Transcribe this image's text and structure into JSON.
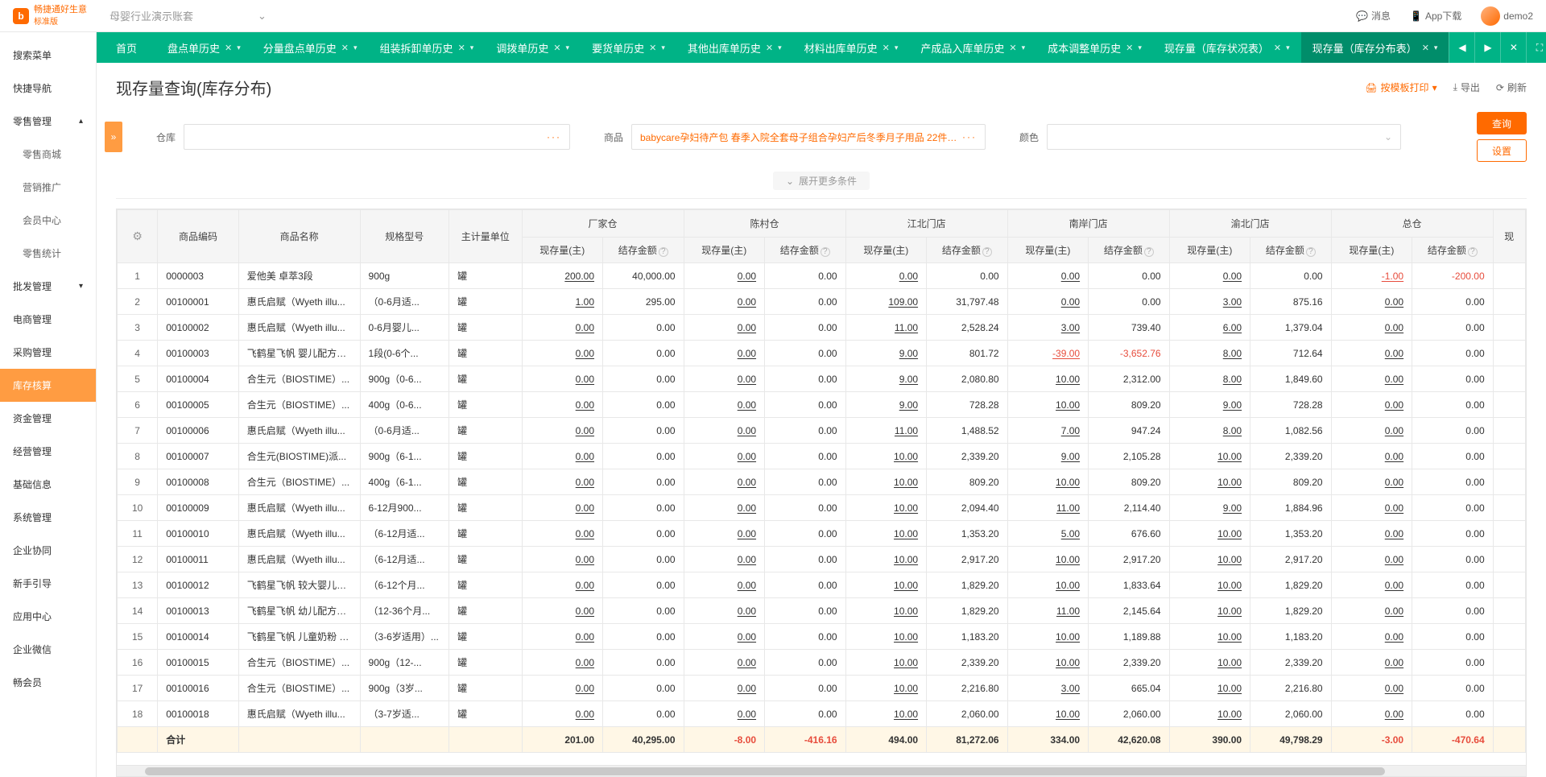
{
  "topbar": {
    "brand_line1": "畅捷通好生意",
    "brand_line2": "标准版",
    "account": "母婴行业演示账套",
    "msg": "消息",
    "download": "App下载",
    "user": "demo2"
  },
  "sidebar": {
    "items": [
      {
        "label": "搜索菜单",
        "type": "item"
      },
      {
        "label": "快捷导航",
        "type": "item"
      },
      {
        "label": "零售管理",
        "type": "group",
        "open": true
      },
      {
        "label": "零售商城",
        "type": "child"
      },
      {
        "label": "营销推广",
        "type": "child"
      },
      {
        "label": "会员中心",
        "type": "child"
      },
      {
        "label": "零售统计",
        "type": "child"
      },
      {
        "label": "批发管理",
        "type": "group",
        "open": false
      },
      {
        "label": "电商管理",
        "type": "item"
      },
      {
        "label": "采购管理",
        "type": "item"
      },
      {
        "label": "库存核算",
        "type": "item",
        "active": true
      },
      {
        "label": "资金管理",
        "type": "item"
      },
      {
        "label": "经营管理",
        "type": "item"
      },
      {
        "label": "基础信息",
        "type": "item"
      },
      {
        "label": "系统管理",
        "type": "item"
      },
      {
        "label": "企业协同",
        "type": "item"
      },
      {
        "label": "新手引导",
        "type": "item"
      },
      {
        "label": "应用中心",
        "type": "item"
      },
      {
        "label": "企业微信",
        "type": "item"
      },
      {
        "label": "畅会员",
        "type": "item"
      }
    ]
  },
  "tabs": {
    "items": [
      {
        "label": "首页",
        "home": true
      },
      {
        "label": "盘点单历史"
      },
      {
        "label": "分量盘点单历史"
      },
      {
        "label": "组装拆卸单历史"
      },
      {
        "label": "调拨单历史"
      },
      {
        "label": "要货单历史"
      },
      {
        "label": "其他出库单历史"
      },
      {
        "label": "材料出库单历史"
      },
      {
        "label": "产成品入库单历史"
      },
      {
        "label": "成本调整单历史"
      },
      {
        "label": "现存量（库存状况表）"
      },
      {
        "label": "现存量（库存分布表）",
        "active": true
      }
    ]
  },
  "page": {
    "title": "现存量查询(库存分布)",
    "print": "按模板打印",
    "export": "导出",
    "refresh": "刷新"
  },
  "filters": {
    "warehouse_label": "仓库",
    "product_label": "商品",
    "product_value": "babycare孕妇待产包 春季入院全套母子组合孕妇产后冬季月子用品 22件套 …",
    "color_label": "颜色",
    "query_btn": "查询",
    "setting_btn": "设置",
    "expand": "展开更多条件"
  },
  "table": {
    "group_headers": [
      "厂家仓",
      "陈村仓",
      "江北门店",
      "南岸门店",
      "渝北门店",
      "总仓"
    ],
    "sub_qty": "现存量(主)",
    "sub_amt": "结存金额",
    "col_code": "商品编码",
    "col_name": "商品名称",
    "col_spec": "规格型号",
    "col_unit": "主计量单位",
    "extra_qty": "现",
    "rows": [
      {
        "idx": 1,
        "code": "0000003",
        "name": "爱他美 卓萃3段",
        "spec": "900g",
        "unit": "罐",
        "cells": [
          [
            "200.00",
            "40,000.00"
          ],
          [
            "0.00",
            "0.00"
          ],
          [
            "0.00",
            "0.00"
          ],
          [
            "0.00",
            "0.00"
          ],
          [
            "0.00",
            "0.00"
          ],
          [
            "-1.00",
            "-200.00"
          ]
        ]
      },
      {
        "idx": 2,
        "code": "00100001",
        "name": "惠氏启赋（Wyeth illu...",
        "spec": "（0-6月适...",
        "unit": "罐",
        "cells": [
          [
            "1.00",
            "295.00"
          ],
          [
            "0.00",
            "0.00"
          ],
          [
            "109.00",
            "31,797.48"
          ],
          [
            "0.00",
            "0.00"
          ],
          [
            "3.00",
            "875.16"
          ],
          [
            "0.00",
            "0.00"
          ]
        ]
      },
      {
        "idx": 3,
        "code": "00100002",
        "name": "惠氏启赋（Wyeth illu...",
        "spec": "0-6月婴儿...",
        "unit": "罐",
        "cells": [
          [
            "0.00",
            "0.00"
          ],
          [
            "0.00",
            "0.00"
          ],
          [
            "11.00",
            "2,528.24"
          ],
          [
            "3.00",
            "739.40"
          ],
          [
            "6.00",
            "1,379.04"
          ],
          [
            "0.00",
            "0.00"
          ]
        ]
      },
      {
        "idx": 4,
        "code": "00100003",
        "name": "飞鹤星飞帆 婴儿配方奶...",
        "spec": "1段(0-6个...",
        "unit": "罐",
        "cells": [
          [
            "0.00",
            "0.00"
          ],
          [
            "0.00",
            "0.00"
          ],
          [
            "9.00",
            "801.72"
          ],
          [
            "-39.00",
            "-3,652.76"
          ],
          [
            "8.00",
            "712.64"
          ],
          [
            "0.00",
            "0.00"
          ]
        ]
      },
      {
        "idx": 5,
        "code": "00100004",
        "name": "合生元（BIOSTIME）...",
        "spec": "900g（0-6...",
        "unit": "罐",
        "cells": [
          [
            "0.00",
            "0.00"
          ],
          [
            "0.00",
            "0.00"
          ],
          [
            "9.00",
            "2,080.80"
          ],
          [
            "10.00",
            "2,312.00"
          ],
          [
            "8.00",
            "1,849.60"
          ],
          [
            "0.00",
            "0.00"
          ]
        ]
      },
      {
        "idx": 6,
        "code": "00100005",
        "name": "合生元（BIOSTIME）...",
        "spec": "400g（0-6...",
        "unit": "罐",
        "cells": [
          [
            "0.00",
            "0.00"
          ],
          [
            "0.00",
            "0.00"
          ],
          [
            "9.00",
            "728.28"
          ],
          [
            "10.00",
            "809.20"
          ],
          [
            "9.00",
            "728.28"
          ],
          [
            "0.00",
            "0.00"
          ]
        ]
      },
      {
        "idx": 7,
        "code": "00100006",
        "name": "惠氏启赋（Wyeth illu...",
        "spec": "（0-6月适...",
        "unit": "罐",
        "cells": [
          [
            "0.00",
            "0.00"
          ],
          [
            "0.00",
            "0.00"
          ],
          [
            "11.00",
            "1,488.52"
          ],
          [
            "7.00",
            "947.24"
          ],
          [
            "8.00",
            "1,082.56"
          ],
          [
            "0.00",
            "0.00"
          ]
        ]
      },
      {
        "idx": 8,
        "code": "00100007",
        "name": "合生元(BIOSTIME)派...",
        "spec": "900g（6-1...",
        "unit": "罐",
        "cells": [
          [
            "0.00",
            "0.00"
          ],
          [
            "0.00",
            "0.00"
          ],
          [
            "10.00",
            "2,339.20"
          ],
          [
            "9.00",
            "2,105.28"
          ],
          [
            "10.00",
            "2,339.20"
          ],
          [
            "0.00",
            "0.00"
          ]
        ]
      },
      {
        "idx": 9,
        "code": "00100008",
        "name": "合生元（BIOSTIME）...",
        "spec": "400g（6-1...",
        "unit": "罐",
        "cells": [
          [
            "0.00",
            "0.00"
          ],
          [
            "0.00",
            "0.00"
          ],
          [
            "10.00",
            "809.20"
          ],
          [
            "10.00",
            "809.20"
          ],
          [
            "10.00",
            "809.20"
          ],
          [
            "0.00",
            "0.00"
          ]
        ]
      },
      {
        "idx": 10,
        "code": "00100009",
        "name": "惠氏启赋（Wyeth illu...",
        "spec": "6-12月900...",
        "unit": "罐",
        "cells": [
          [
            "0.00",
            "0.00"
          ],
          [
            "0.00",
            "0.00"
          ],
          [
            "10.00",
            "2,094.40"
          ],
          [
            "11.00",
            "2,114.40"
          ],
          [
            "9.00",
            "1,884.96"
          ],
          [
            "0.00",
            "0.00"
          ]
        ]
      },
      {
        "idx": 11,
        "code": "00100010",
        "name": "惠氏启赋（Wyeth illu...",
        "spec": "（6-12月适...",
        "unit": "罐",
        "cells": [
          [
            "0.00",
            "0.00"
          ],
          [
            "0.00",
            "0.00"
          ],
          [
            "10.00",
            "1,353.20"
          ],
          [
            "5.00",
            "676.60"
          ],
          [
            "10.00",
            "1,353.20"
          ],
          [
            "0.00",
            "0.00"
          ]
        ]
      },
      {
        "idx": 12,
        "code": "00100011",
        "name": "惠氏启赋（Wyeth illu...",
        "spec": "（6-12月适...",
        "unit": "罐",
        "cells": [
          [
            "0.00",
            "0.00"
          ],
          [
            "0.00",
            "0.00"
          ],
          [
            "10.00",
            "2,917.20"
          ],
          [
            "10.00",
            "2,917.20"
          ],
          [
            "10.00",
            "2,917.20"
          ],
          [
            "0.00",
            "0.00"
          ]
        ]
      },
      {
        "idx": 13,
        "code": "00100012",
        "name": "飞鹤星飞帆 较大婴儿配...",
        "spec": "（6-12个月...",
        "unit": "罐",
        "cells": [
          [
            "0.00",
            "0.00"
          ],
          [
            "0.00",
            "0.00"
          ],
          [
            "10.00",
            "1,829.20"
          ],
          [
            "10.00",
            "1,833.64"
          ],
          [
            "10.00",
            "1,829.20"
          ],
          [
            "0.00",
            "0.00"
          ]
        ]
      },
      {
        "idx": 14,
        "code": "00100013",
        "name": "飞鹤星飞帆 幼儿配方奶...",
        "spec": "（12-36个月...",
        "unit": "罐",
        "cells": [
          [
            "0.00",
            "0.00"
          ],
          [
            "0.00",
            "0.00"
          ],
          [
            "10.00",
            "1,829.20"
          ],
          [
            "11.00",
            "2,145.64"
          ],
          [
            "10.00",
            "1,829.20"
          ],
          [
            "0.00",
            "0.00"
          ]
        ]
      },
      {
        "idx": 15,
        "code": "00100014",
        "name": "飞鹤星飞帆 儿童奶粉 4...",
        "spec": "（3-6岁适用）...",
        "unit": "罐",
        "cells": [
          [
            "0.00",
            "0.00"
          ],
          [
            "0.00",
            "0.00"
          ],
          [
            "10.00",
            "1,183.20"
          ],
          [
            "10.00",
            "1,189.88"
          ],
          [
            "10.00",
            "1,183.20"
          ],
          [
            "0.00",
            "0.00"
          ]
        ]
      },
      {
        "idx": 16,
        "code": "00100015",
        "name": "合生元（BIOSTIME）...",
        "spec": "900g（12-...",
        "unit": "罐",
        "cells": [
          [
            "0.00",
            "0.00"
          ],
          [
            "0.00",
            "0.00"
          ],
          [
            "10.00",
            "2,339.20"
          ],
          [
            "10.00",
            "2,339.20"
          ],
          [
            "10.00",
            "2,339.20"
          ],
          [
            "0.00",
            "0.00"
          ]
        ]
      },
      {
        "idx": 17,
        "code": "00100016",
        "name": "合生元（BIOSTIME）...",
        "spec": "900g（3岁...",
        "unit": "罐",
        "cells": [
          [
            "0.00",
            "0.00"
          ],
          [
            "0.00",
            "0.00"
          ],
          [
            "10.00",
            "2,216.80"
          ],
          [
            "3.00",
            "665.04"
          ],
          [
            "10.00",
            "2,216.80"
          ],
          [
            "0.00",
            "0.00"
          ]
        ]
      },
      {
        "idx": 18,
        "code": "00100018",
        "name": "惠氏启赋（Wyeth illu...",
        "spec": "（3-7岁适...",
        "unit": "罐",
        "cells": [
          [
            "0.00",
            "0.00"
          ],
          [
            "0.00",
            "0.00"
          ],
          [
            "10.00",
            "2,060.00"
          ],
          [
            "10.00",
            "2,060.00"
          ],
          [
            "10.00",
            "2,060.00"
          ],
          [
            "0.00",
            "0.00"
          ]
        ]
      }
    ],
    "total_label": "合计",
    "totals": [
      [
        "201.00",
        "40,295.00"
      ],
      [
        "-8.00",
        "-416.16"
      ],
      [
        "494.00",
        "81,272.06"
      ],
      [
        "334.00",
        "42,620.08"
      ],
      [
        "390.00",
        "49,798.29"
      ],
      [
        "-3.00",
        "-470.64"
      ]
    ]
  }
}
